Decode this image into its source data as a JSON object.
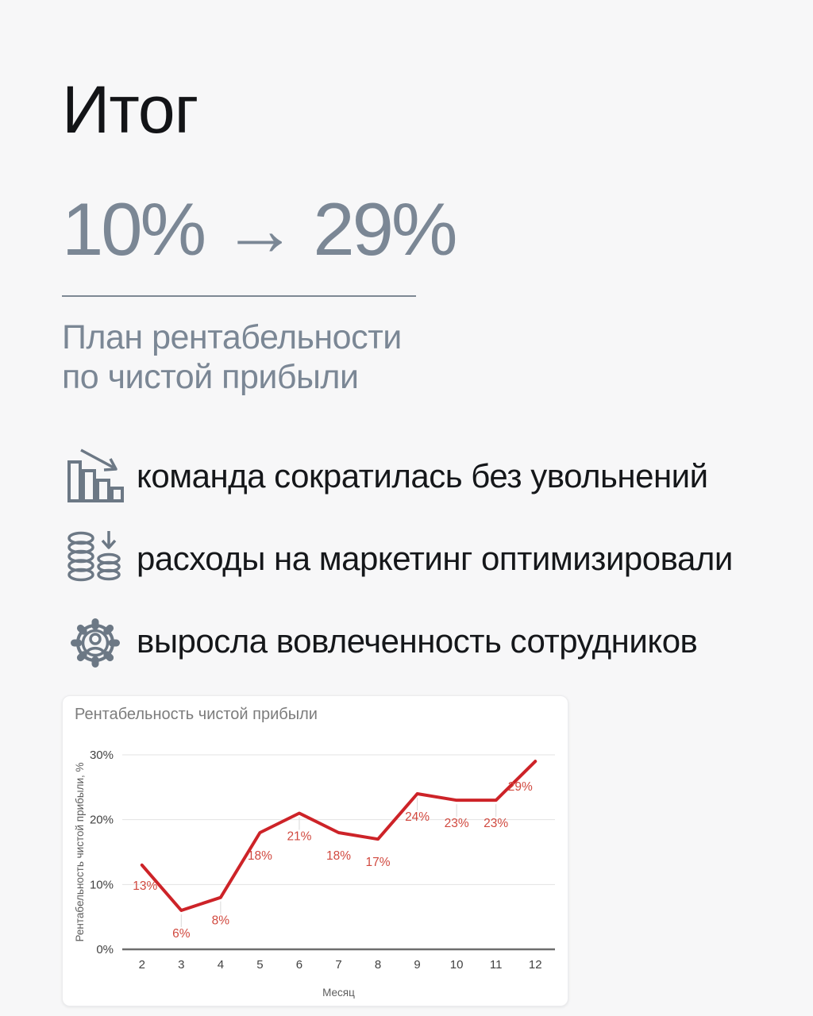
{
  "header": {
    "title": "Итог",
    "stat": "10% → 29%",
    "subtitle_line1": "План рентабельности",
    "subtitle_line2": "по чистой прибыли"
  },
  "highlights": [
    {
      "icon": "declining-bars-icon",
      "label": "команда сократилась без увольнений"
    },
    {
      "icon": "coins-down-icon",
      "label": "расходы на маркетинг оптимизировали"
    },
    {
      "icon": "gear-person-icon",
      "label": "выросла вовлеченность сотрудников"
    }
  ],
  "colors": {
    "background": "#f7f7f8",
    "accent_slate": "#7b8795",
    "text_dark": "#15171a",
    "icon_gray": "#6c7885",
    "chart_line": "#cd2328",
    "chart_label": "#d1493f",
    "grid": "#e3e3e3",
    "axis": "#6e6e6e"
  },
  "chart_data": {
    "type": "line",
    "title": "Рентабельность чистой прибыли",
    "xlabel": "Месяц",
    "ylabel": "Рентабельность чистой прибыли, %",
    "x": [
      2,
      3,
      4,
      5,
      6,
      7,
      8,
      9,
      10,
      11,
      12
    ],
    "values": [
      13,
      6,
      8,
      18,
      21,
      18,
      17,
      24,
      23,
      23,
      29
    ],
    "labels": [
      "13%",
      "6%",
      "8%",
      "18%",
      "21%",
      "18%",
      "17%",
      "24%",
      "23%",
      "23%",
      "29%"
    ],
    "ylim": [
      0,
      30
    ],
    "ytick_values": [
      0,
      10,
      20,
      30
    ],
    "yticks": [
      "0%",
      "10%",
      "20%",
      "30%"
    ],
    "grid": true,
    "legend": "none",
    "leader_months": [
      3,
      4,
      6,
      9,
      10,
      11
    ]
  }
}
